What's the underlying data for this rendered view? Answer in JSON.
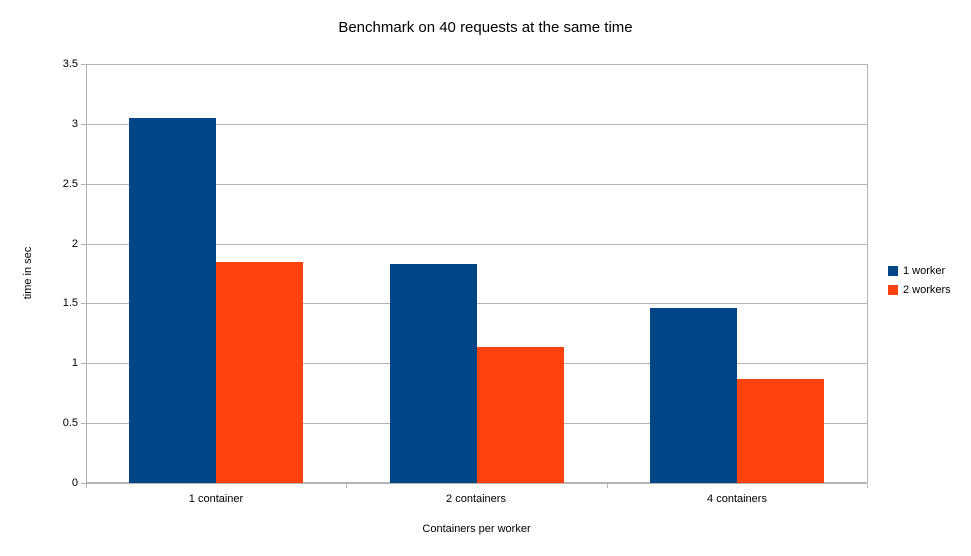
{
  "chart_data": {
    "type": "bar",
    "title": "Benchmark on 40 requests at the same time",
    "xlabel": "Containers per worker",
    "ylabel": "time in sec",
    "categories": [
      "1 container",
      "2 containers",
      "4 containers"
    ],
    "series": [
      {
        "name": "1 worker",
        "color": "#004586",
        "values": [
          3.05,
          1.83,
          1.46
        ]
      },
      {
        "name": "2 workers",
        "color": "#FF420E",
        "values": [
          1.85,
          1.14,
          0.87
        ]
      }
    ],
    "ylim": [
      0,
      3.5
    ],
    "yticks": [
      0,
      0.5,
      1,
      1.5,
      2,
      2.5,
      3,
      3.5
    ],
    "ytick_labels": [
      "0",
      "0.5",
      "1",
      "1.5",
      "2",
      "2.5",
      "3",
      "3.5"
    ],
    "grid": true,
    "legend_position": "right",
    "axis_color": "#b3b3b3"
  }
}
